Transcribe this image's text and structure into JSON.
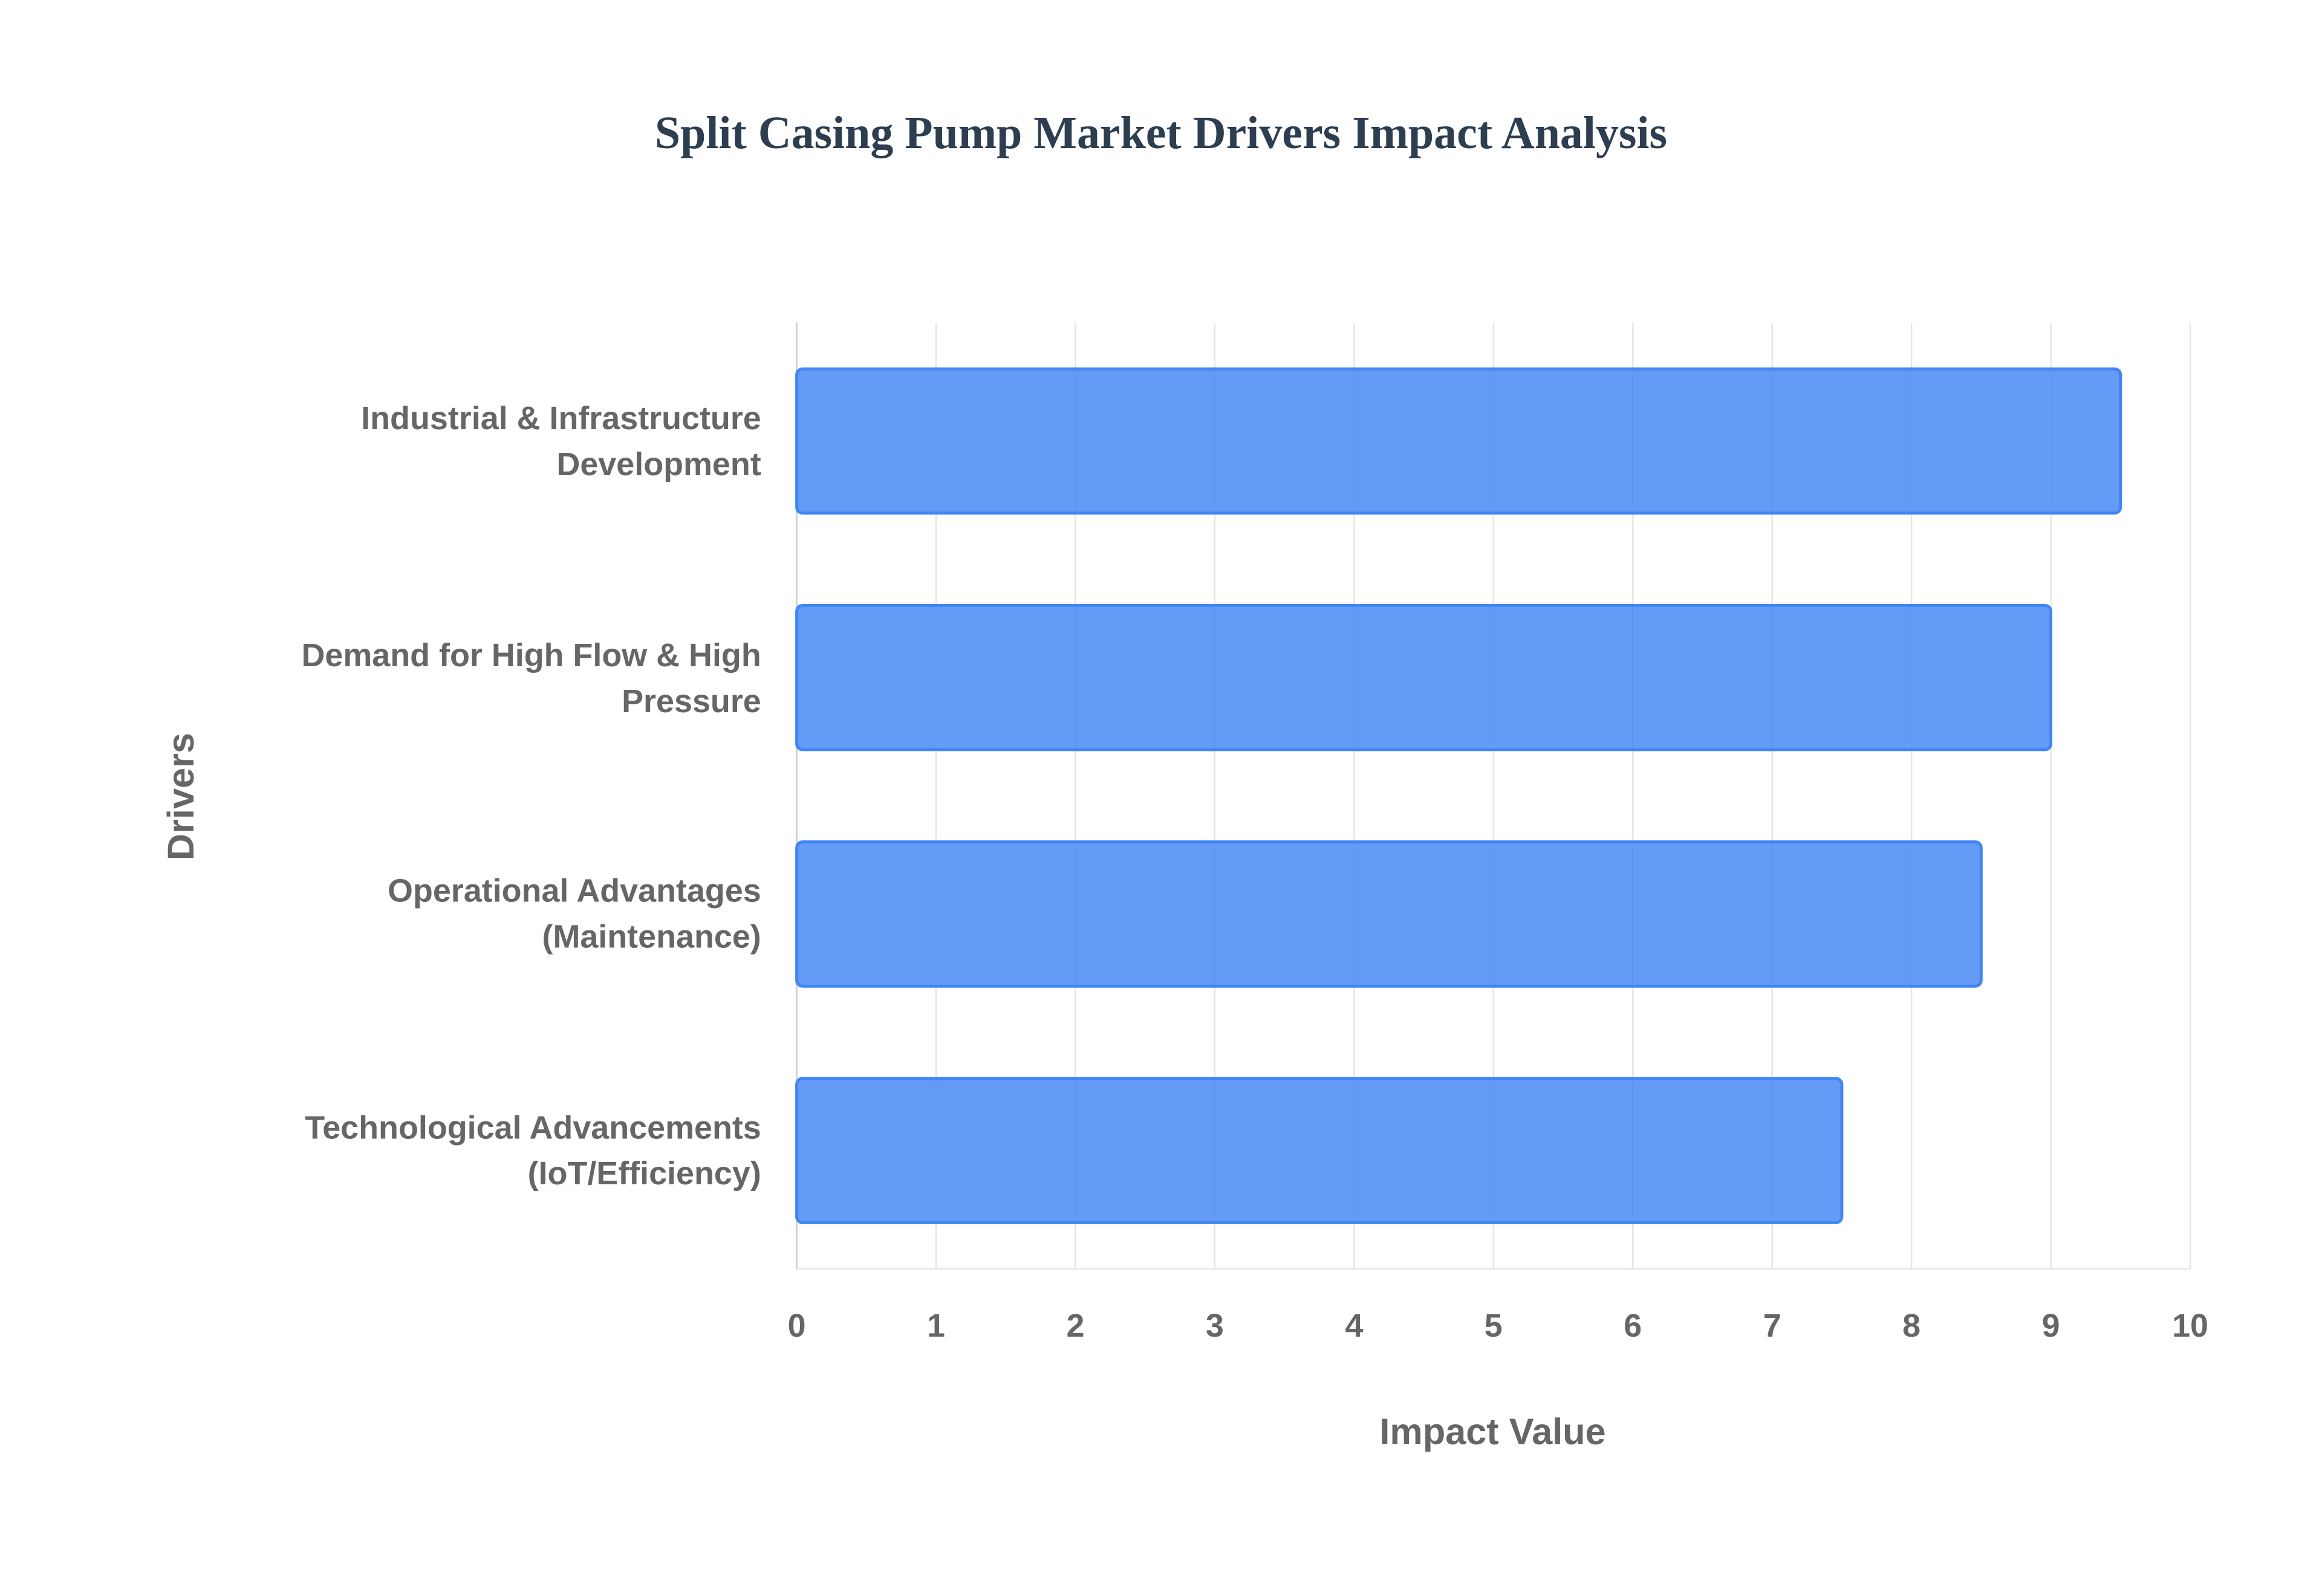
{
  "chart_data": {
    "type": "bar",
    "orientation": "horizontal",
    "title": "Split Casing Pump Market Drivers Impact Analysis",
    "x_label": "Impact Value",
    "y_label": "Drivers",
    "categories": [
      "Industrial & Infrastructure Development",
      "Demand for High Flow & High Pressure",
      "Operational Advantages (Maintenance)",
      "Technological Advancements (IoT/Efficiency)"
    ],
    "values": [
      9.5,
      9,
      8.5,
      7.5
    ],
    "color": "#4285f4",
    "xlim": [
      0,
      10
    ],
    "xticks": [
      0,
      1,
      2,
      3,
      4,
      5,
      6,
      7,
      8,
      9,
      10
    ],
    "grid": true
  }
}
